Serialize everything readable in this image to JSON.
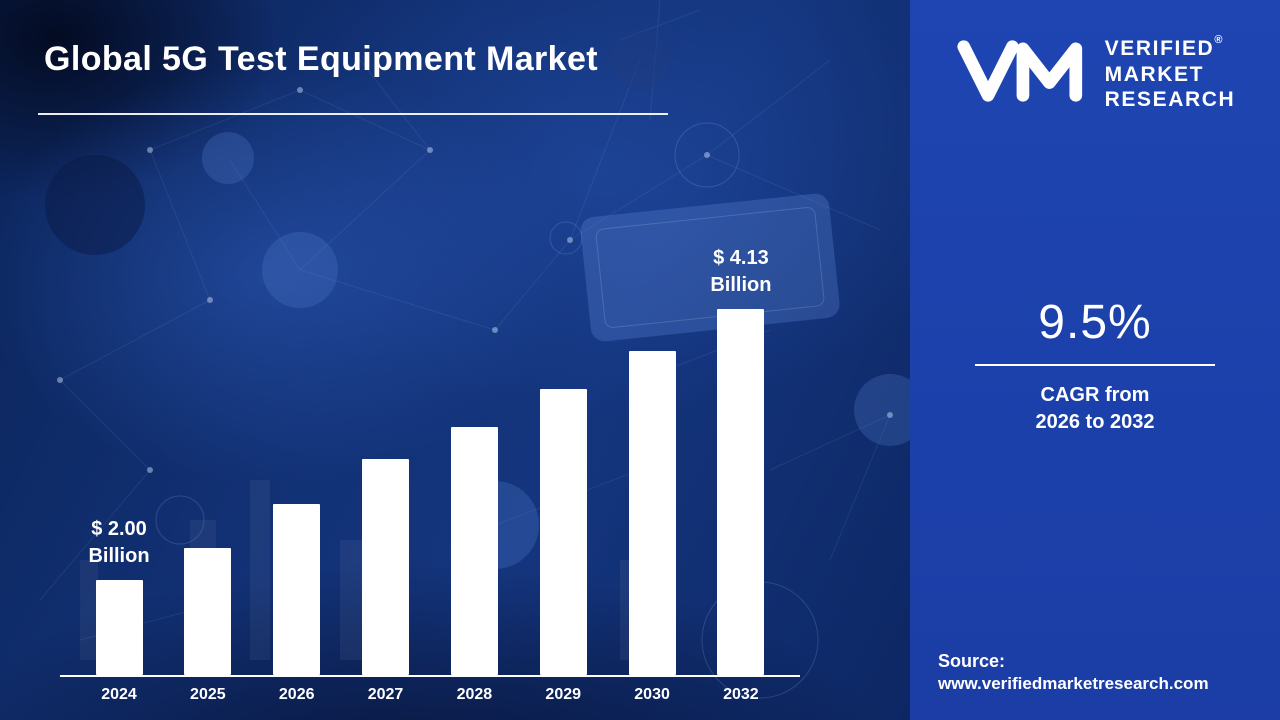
{
  "title": "Global 5G Test Equipment Market",
  "chart_data": {
    "type": "bar",
    "title": "Global 5G Test Equipment Market",
    "categories": [
      "2024",
      "2025",
      "2026",
      "2027",
      "2028",
      "2029",
      "2030",
      "2032"
    ],
    "values": [
      2.0,
      2.25,
      2.6,
      2.95,
      3.2,
      3.5,
      3.8,
      4.13
    ],
    "unit": "USD Billion",
    "bar_labels": [
      "$ 2.00\nBillion",
      "",
      "",
      "",
      "",
      "",
      "",
      "$ 4.13\nBillion"
    ],
    "ylim": [
      1.25,
      4.4
    ],
    "grid": false,
    "legend": "none",
    "bar_color": "#ffffff"
  },
  "sidebar": {
    "logo": {
      "monogram": "VM",
      "lines": [
        "VERIFIED",
        "MARKET",
        "RESEARCH"
      ],
      "registered_mark": "®"
    },
    "cagr_value": "9.5%",
    "cagr_line1": "CAGR from",
    "cagr_line2": "2026 to 2032",
    "source_label": "Source:",
    "source_url": "www.verifiedmarketresearch.com"
  },
  "colors": {
    "left_background": "#12316f",
    "panel_background": "#1c41ab",
    "bar": "#ffffff",
    "text": "#ffffff"
  }
}
